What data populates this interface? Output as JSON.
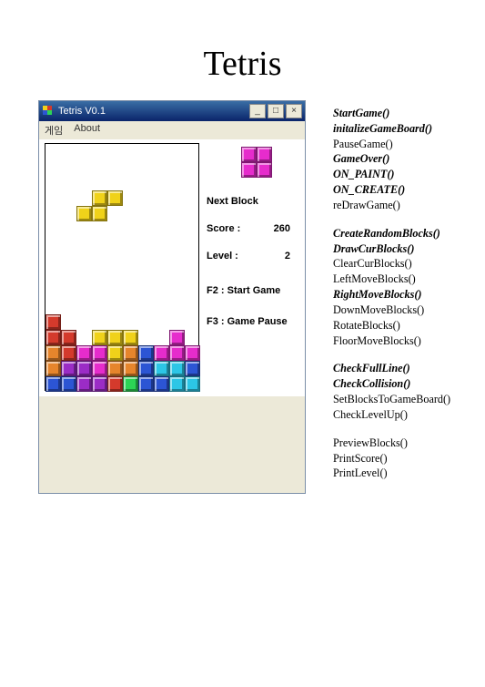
{
  "page": {
    "title": "Tetris"
  },
  "window": {
    "title": "Tetris V0.1",
    "menu": [
      "게임",
      "About"
    ],
    "buttons": {
      "min": "_",
      "max": "□",
      "close": "×"
    }
  },
  "side_panel": {
    "next_label": "Next Block",
    "score_label": "Score :",
    "score_value": "260",
    "level_label": "Level :",
    "level_value": "2",
    "hint1": "F2 : Start Game",
    "hint2": "F3 : Game Pause"
  },
  "colors": {
    "magenta": "#e62ccc",
    "cyan": "#2cc6e6",
    "yellow": "#f0d21a",
    "purple": "#9b2cc6",
    "orange": "#e6852c",
    "red": "#d43a2c",
    "blue": "#2c55d4",
    "green": "#2cd455"
  },
  "board": {
    "cell": 17,
    "cols": 10,
    "rows": 16,
    "cells": [
      {
        "r": 3,
        "c": 3,
        "k": "yellow"
      },
      {
        "r": 3,
        "c": 4,
        "k": "yellow"
      },
      {
        "r": 4,
        "c": 2,
        "k": "yellow"
      },
      {
        "r": 4,
        "c": 3,
        "k": "yellow"
      },
      {
        "r": 11,
        "c": 0,
        "k": "red"
      },
      {
        "r": 12,
        "c": 0,
        "k": "red"
      },
      {
        "r": 12,
        "c": 1,
        "k": "red"
      },
      {
        "r": 12,
        "c": 3,
        "k": "yellow"
      },
      {
        "r": 12,
        "c": 4,
        "k": "yellow"
      },
      {
        "r": 12,
        "c": 5,
        "k": "yellow"
      },
      {
        "r": 12,
        "c": 8,
        "k": "magenta"
      },
      {
        "r": 13,
        "c": 0,
        "k": "orange"
      },
      {
        "r": 13,
        "c": 1,
        "k": "red"
      },
      {
        "r": 13,
        "c": 2,
        "k": "magenta"
      },
      {
        "r": 13,
        "c": 3,
        "k": "magenta"
      },
      {
        "r": 13,
        "c": 4,
        "k": "yellow"
      },
      {
        "r": 13,
        "c": 5,
        "k": "orange"
      },
      {
        "r": 13,
        "c": 6,
        "k": "blue"
      },
      {
        "r": 13,
        "c": 7,
        "k": "magenta"
      },
      {
        "r": 13,
        "c": 8,
        "k": "magenta"
      },
      {
        "r": 13,
        "c": 9,
        "k": "magenta"
      },
      {
        "r": 14,
        "c": 0,
        "k": "orange"
      },
      {
        "r": 14,
        "c": 1,
        "k": "purple"
      },
      {
        "r": 14,
        "c": 2,
        "k": "purple"
      },
      {
        "r": 14,
        "c": 3,
        "k": "magenta"
      },
      {
        "r": 14,
        "c": 4,
        "k": "orange"
      },
      {
        "r": 14,
        "c": 5,
        "k": "orange"
      },
      {
        "r": 14,
        "c": 6,
        "k": "blue"
      },
      {
        "r": 14,
        "c": 7,
        "k": "cyan"
      },
      {
        "r": 14,
        "c": 8,
        "k": "cyan"
      },
      {
        "r": 14,
        "c": 9,
        "k": "blue"
      },
      {
        "r": 15,
        "c": 0,
        "k": "blue"
      },
      {
        "r": 15,
        "c": 1,
        "k": "blue"
      },
      {
        "r": 15,
        "c": 2,
        "k": "purple"
      },
      {
        "r": 15,
        "c": 3,
        "k": "purple"
      },
      {
        "r": 15,
        "c": 4,
        "k": "red"
      },
      {
        "r": 15,
        "c": 5,
        "k": "green"
      },
      {
        "r": 15,
        "c": 6,
        "k": "blue"
      },
      {
        "r": 15,
        "c": 7,
        "k": "blue"
      },
      {
        "r": 15,
        "c": 8,
        "k": "cyan"
      },
      {
        "r": 15,
        "c": 9,
        "k": "cyan"
      }
    ]
  },
  "preview": {
    "color_key": "magenta",
    "cells": [
      {
        "r": 0,
        "c": 0
      },
      {
        "r": 0,
        "c": 1
      },
      {
        "r": 1,
        "c": 0
      },
      {
        "r": 1,
        "c": 1
      }
    ]
  },
  "functions": [
    [
      {
        "t": "StartGame()",
        "b": true
      },
      {
        "t": "initalizeGameBoard()",
        "b": true
      },
      {
        "t": "PauseGame()",
        "b": false
      },
      {
        "t": "GameOver()",
        "b": true
      },
      {
        "t": "ON_PAINT()",
        "b": true
      },
      {
        "t": "ON_CREATE()",
        "b": true
      },
      {
        "t": "reDrawGame()",
        "b": false
      }
    ],
    [
      {
        "t": "CreateRandomBlocks()",
        "b": true
      },
      {
        "t": "DrawCurBlocks()",
        "b": true
      },
      {
        "t": "ClearCurBlocks()",
        "b": false
      },
      {
        "t": "LeftMoveBlocks()",
        "b": false
      },
      {
        "t": "RightMoveBlocks()",
        "b": true
      },
      {
        "t": "DownMoveBlocks()",
        "b": false
      },
      {
        "t": "RotateBlocks()",
        "b": false
      },
      {
        "t": "FloorMoveBlocks()",
        "b": false
      }
    ],
    [
      {
        "t": "CheckFullLine()",
        "b": true
      },
      {
        "t": "CheckCollision()",
        "b": true
      },
      {
        "t": "SetBlocksToGameBoard()",
        "b": false
      },
      {
        "t": "CheckLevelUp()",
        "b": false
      }
    ],
    [
      {
        "t": "PreviewBlocks()",
        "b": false
      },
      {
        "t": "PrintScore()",
        "b": false
      },
      {
        "t": "PrintLevel()",
        "b": false
      }
    ]
  ]
}
